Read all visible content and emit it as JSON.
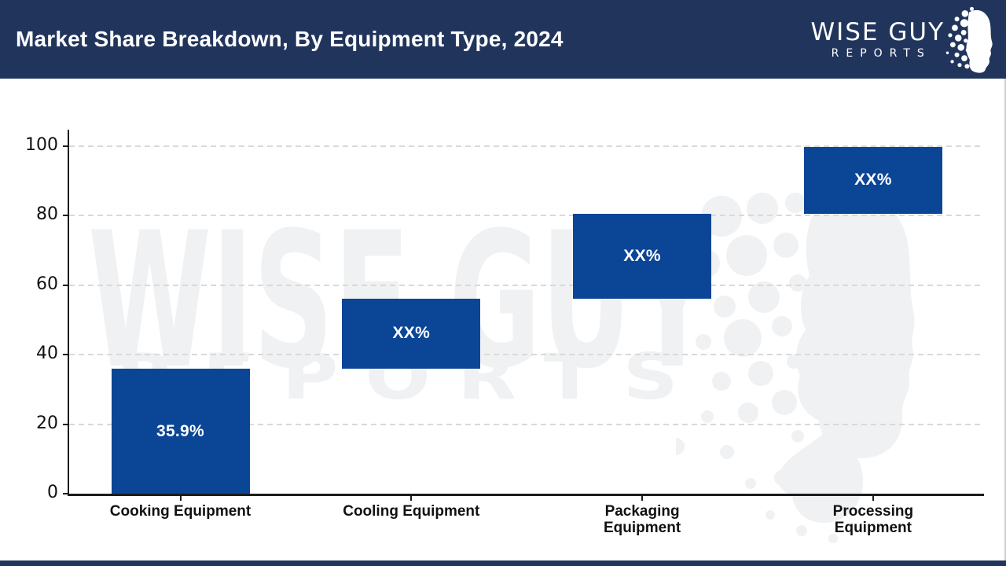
{
  "header": {
    "title": "Market Share Breakdown, By Equipment Type, 2024",
    "logo": {
      "line1": "WISE GUY",
      "line2": "REPORTS"
    }
  },
  "watermark": {
    "line1": "WISE GUY",
    "line2": "R E P O R T S"
  },
  "chart_data": {
    "type": "bar",
    "subtype": "waterfall",
    "title": "Market Share Breakdown, By Equipment Type, 2024",
    "categories": [
      "Cooking Equipment",
      "Cooling Equipment",
      "Packaging Equipment",
      "Processing Equipment"
    ],
    "category_label_lines": [
      [
        "Cooking Equipment"
      ],
      [
        "Cooling Equipment"
      ],
      [
        "Packaging",
        "Equipment"
      ],
      [
        "Processing",
        "Equipment"
      ]
    ],
    "segments": [
      {
        "category": "Cooking Equipment",
        "start": 0,
        "end": 35.9,
        "label": "35.9%"
      },
      {
        "category": "Cooling Equipment",
        "start": 35.9,
        "end": 56.2,
        "label": "XX%"
      },
      {
        "category": "Packaging Equipment",
        "start": 56.2,
        "end": 80.6,
        "label": "XX%"
      },
      {
        "category": "Processing Equipment",
        "start": 80.6,
        "end": 99.8,
        "label": "XX%"
      }
    ],
    "yticks": [
      0,
      20,
      40,
      60,
      80,
      100
    ],
    "ylim": [
      0,
      105
    ],
    "xlabel": "",
    "ylabel": "",
    "grid": "horizontal-dashed",
    "legend": "none",
    "bar_color": "#0A4596",
    "bar_label_color": "#ffffff"
  },
  "colors": {
    "header_bg": "#21355C",
    "footer_bg": "#21355C",
    "bar_blue": "#0A4596",
    "gridline": "#d9d9d9",
    "watermark": "#f0f1f3"
  }
}
